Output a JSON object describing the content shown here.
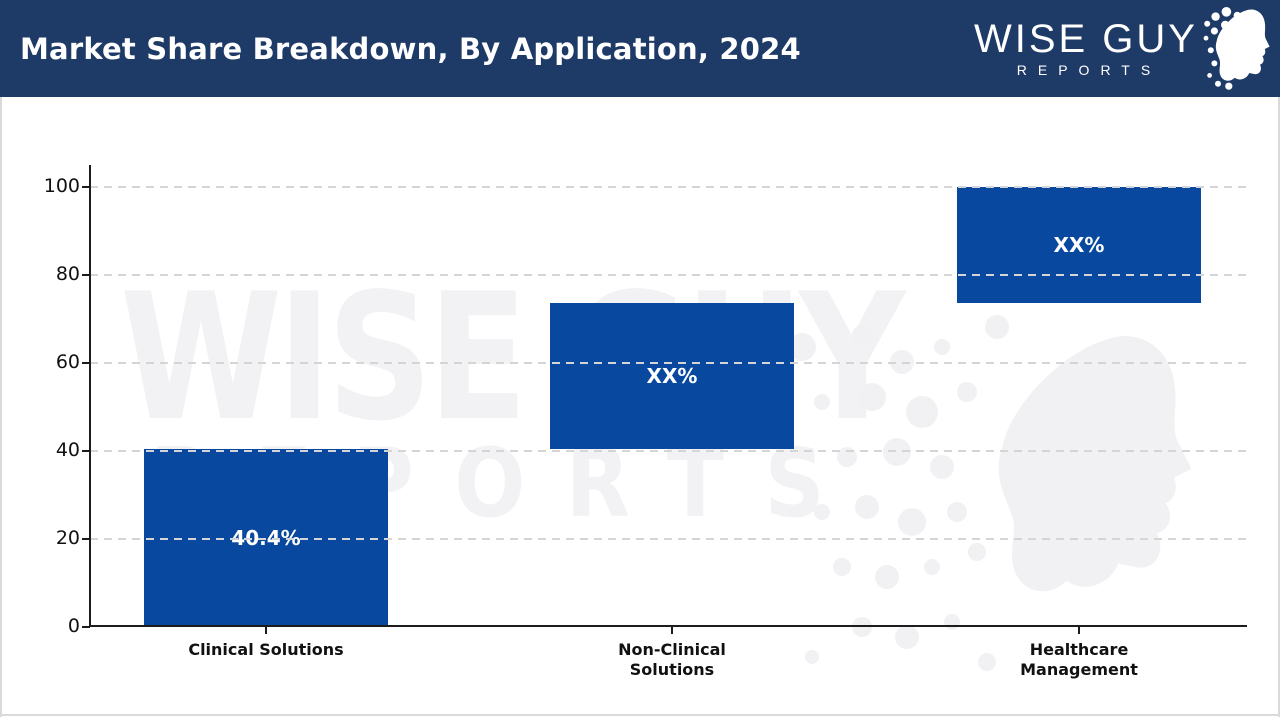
{
  "header": {
    "title": "Market Share Breakdown, By Application, 2024",
    "bg_color": "#1e3a67",
    "logo": {
      "line1": "WISE GUY",
      "line2": "REPORTS"
    }
  },
  "watermark": {
    "line1": "WISE GUY",
    "line2": "REPORTS"
  },
  "chart_data": {
    "type": "bar",
    "subtype": "waterfall-floating-segments",
    "title": "Market Share Breakdown, By Application, 2024",
    "categories": [
      "Clinical Solutions",
      "Non-Clinical Solutions",
      "Healthcare Management"
    ],
    "xtick_labels": [
      [
        "Clinical Solutions"
      ],
      [
        "Non-Clinical",
        "Solutions"
      ],
      [
        "Healthcare",
        "Management"
      ]
    ],
    "bars": [
      {
        "start": 0,
        "end": 40.4,
        "label": "40.4%"
      },
      {
        "start": 40.4,
        "end": 73.6,
        "label": "XX%"
      },
      {
        "start": 73.6,
        "end": 100.0,
        "label": "XX%"
      }
    ],
    "yticks": [
      0,
      20,
      40,
      60,
      80,
      100
    ],
    "ylim": [
      0,
      105
    ],
    "xlabel": "",
    "ylabel": "",
    "grid": "horizontal-dashed",
    "legend": "none",
    "bar_color": "#08499f",
    "bar_label_color": "#ffffff",
    "grid_color": "#d5d5d5",
    "axis_color": "#1c1c1c"
  }
}
